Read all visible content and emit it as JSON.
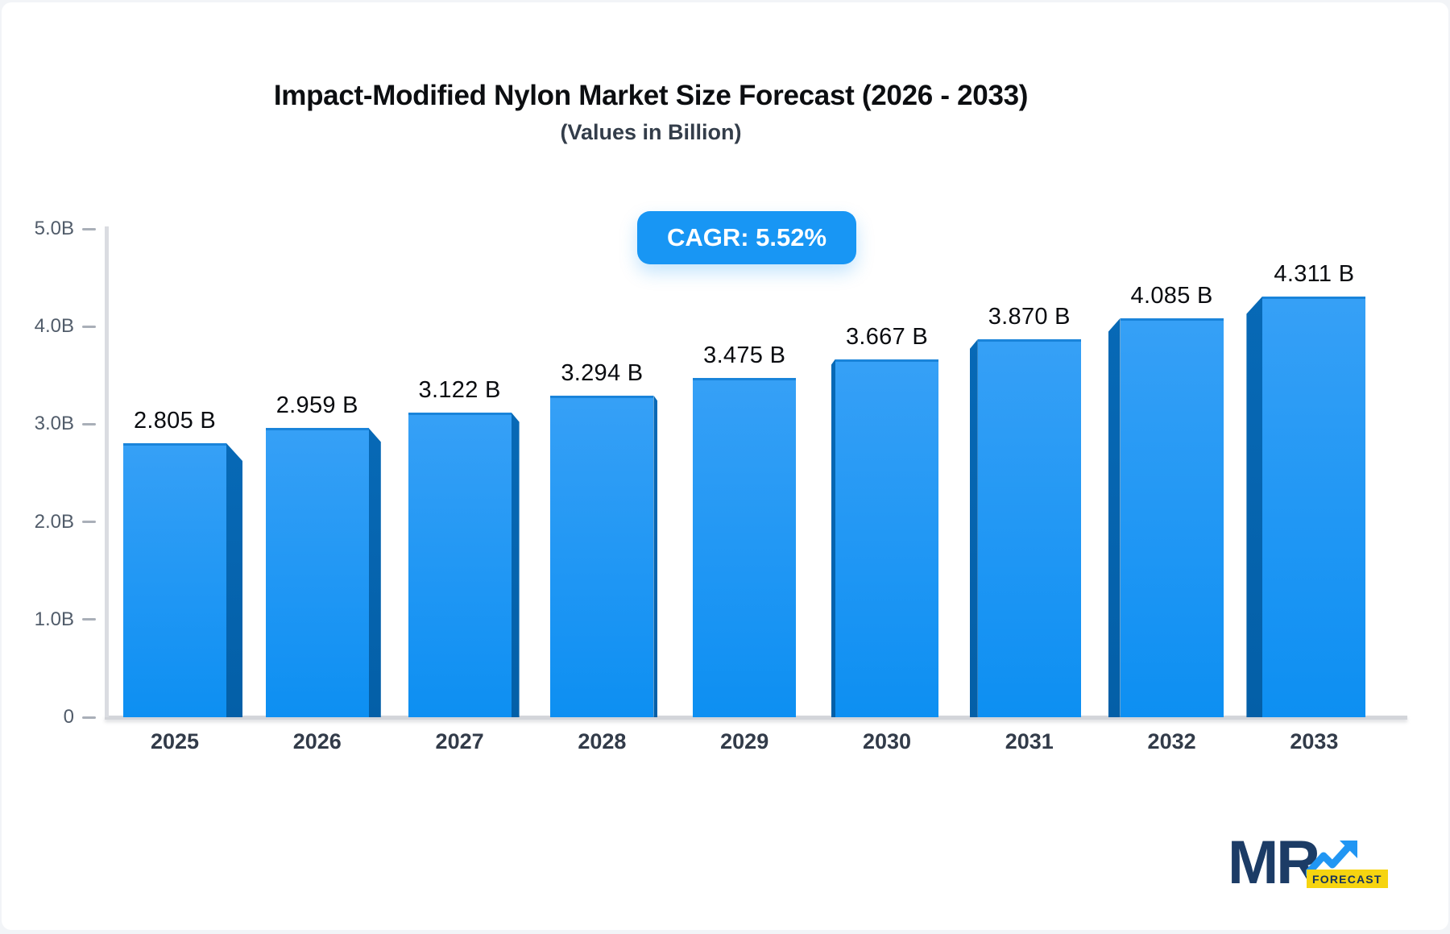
{
  "title": "Impact-Modified Nylon Market Size Forecast (2026 - 2033)",
  "subtitle": "(Values in Billion)",
  "cagr_badge": "CAGR: 5.52%",
  "chart_data": {
    "type": "bar",
    "title": "Impact-Modified Nylon Market Size Forecast (2026 - 2033)",
    "subtitle": "(Values in Billion)",
    "categories": [
      "2025",
      "2026",
      "2027",
      "2028",
      "2029",
      "2030",
      "2031",
      "2032",
      "2033"
    ],
    "values": [
      2.805,
      2.959,
      3.122,
      3.294,
      3.475,
      3.667,
      3.87,
      4.085,
      4.311
    ],
    "bar_labels": [
      "2.805 B",
      "2.959 B",
      "3.122 B",
      "3.294 B",
      "3.475 B",
      "3.667 B",
      "3.870 B",
      "4.085 B",
      "4.311 B"
    ],
    "cagr": "5.52%",
    "ylim": [
      0,
      5.0
    ],
    "y_tick_labels": [
      "5.0B",
      "4.0B",
      "3.0B",
      "2.0B",
      "1.0B",
      "0"
    ],
    "y_tick_values": [
      5.0,
      4.0,
      3.0,
      2.0,
      1.0,
      0
    ],
    "grid": false,
    "legend": false,
    "bar_color_top": "#36a0f6",
    "bar_color_bottom": "#0d8ff2",
    "bar_side_color": "#0769b6",
    "style": "3d-perspective-bars-center-vanishing-point"
  },
  "colors": {
    "badge_background": "#1896f4",
    "badge_text": "#ffffff",
    "axis_line": "#dadce1",
    "tick_text": "#515c6a",
    "category_text": "#323b49",
    "value_label_text": "#0a0c10",
    "logo_navy": "#1c3c66",
    "logo_yellow": "#f6d410",
    "logo_arrow_blue": "#2196f3"
  },
  "logo": {
    "mr": "MR",
    "forecast": "FORECAST"
  }
}
